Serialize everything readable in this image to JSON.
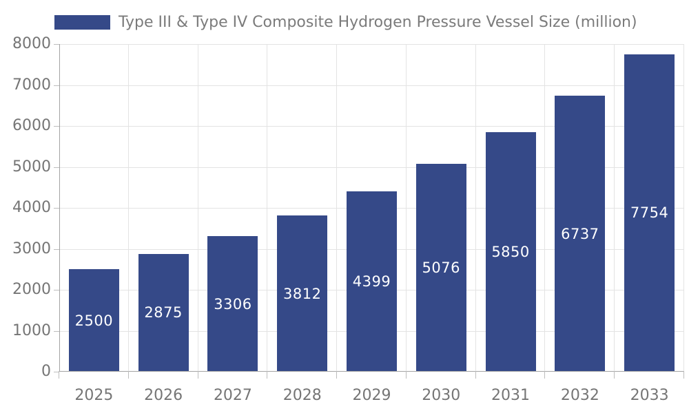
{
  "legend": {
    "label": "Type III & Type IV Composite Hydrogen Pressure Vessel Size (million)"
  },
  "colors": {
    "bar": "#354988",
    "bar_label": "#ffffff",
    "grid": "#e3e3e3",
    "axis_line": "#a3a3a3",
    "tick": "#bdbdbd",
    "axis_text": "#757575",
    "legend_text": "#7b7b7b",
    "background": "#ffffff"
  },
  "chart_data": {
    "type": "bar",
    "title": "Type III & Type IV Composite Hydrogen Pressure Vessel Size (million)",
    "categories": [
      "2025",
      "2026",
      "2027",
      "2028",
      "2029",
      "2030",
      "2031",
      "2032",
      "2033"
    ],
    "values": [
      2500,
      2875,
      3306,
      3812,
      4399,
      5076,
      5850,
      6737,
      7754
    ],
    "xlabel": "",
    "ylabel": "",
    "ylim": [
      0,
      8000
    ],
    "ytick_step": 1000,
    "ytick_labels": [
      "0",
      "1000",
      "2000",
      "3000",
      "4000",
      "5000",
      "6000",
      "7000",
      "8000"
    ],
    "grid": true,
    "legend_position": "top-left",
    "value_labels": "inside-center",
    "series": [
      {
        "name": "Type III & Type IV Composite Hydrogen Pressure Vessel Size (million)",
        "values": [
          2500,
          2875,
          3306,
          3812,
          4399,
          5076,
          5850,
          6737,
          7754
        ]
      }
    ]
  }
}
